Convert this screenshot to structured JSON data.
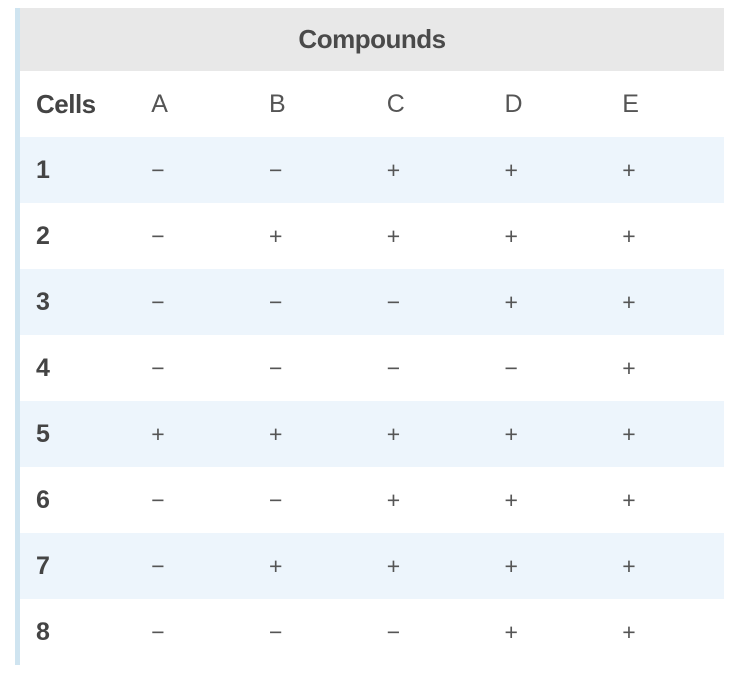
{
  "colors": {
    "title_bg": "#e8e8e8",
    "row_alt_bg": "#edf5fc",
    "left_border": "#cfe4f0",
    "text": "#4d4d4d"
  },
  "chart_data": {
    "type": "table",
    "title": "Compounds",
    "corner_label": "Cells",
    "columns": [
      "A",
      "B",
      "C",
      "D",
      "E"
    ],
    "rows": [
      {
        "label": "1",
        "values": [
          "−",
          "−",
          "+",
          "+",
          "+"
        ]
      },
      {
        "label": "2",
        "values": [
          "−",
          "+",
          "+",
          "+",
          "+"
        ]
      },
      {
        "label": "3",
        "values": [
          "−",
          "−",
          "−",
          "+",
          "+"
        ]
      },
      {
        "label": "4",
        "values": [
          "−",
          "−",
          "−",
          "−",
          "+"
        ]
      },
      {
        "label": "5",
        "values": [
          "+",
          "+",
          "+",
          "+",
          "+"
        ]
      },
      {
        "label": "6",
        "values": [
          "−",
          "−",
          "+",
          "+",
          "+"
        ]
      },
      {
        "label": "7",
        "values": [
          "−",
          "+",
          "+",
          "+",
          "+"
        ]
      },
      {
        "label": "8",
        "values": [
          "−",
          "−",
          "−",
          "+",
          "+"
        ]
      }
    ]
  }
}
